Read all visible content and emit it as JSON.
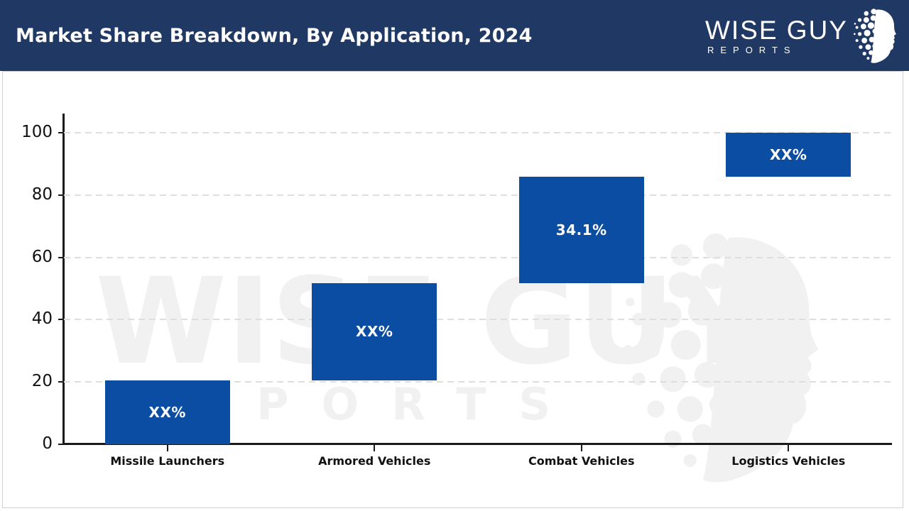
{
  "header": {
    "title": "Market Share Breakdown, By Application, 2024",
    "logo": {
      "wordmark": "WISE GUY",
      "subtitle": "REPORTS"
    }
  },
  "watermark": {
    "line1": "WISE GUY",
    "line2": "REPORTS"
  },
  "colors": {
    "header_bg": "#1F3864",
    "bar": "#0B4DA2",
    "watermark": "#F1F1F1",
    "grid": "#DEDEDE",
    "axis": "#1A1A1A"
  },
  "chart_data": {
    "type": "bar",
    "variant": "waterfall",
    "title": "Market Share Breakdown, By Application, 2024",
    "xlabel": "",
    "ylabel": "",
    "categories": [
      "Missile Launchers",
      "Armored Vehicles",
      "Combat Vehicles",
      "Logistics Vehicles"
    ],
    "segments": [
      {
        "category": "Missile Launchers",
        "start": 0,
        "end": 20.5,
        "value_label": "XX%"
      },
      {
        "category": "Armored Vehicles",
        "start": 20.5,
        "end": 51.8,
        "value_label": "XX%"
      },
      {
        "category": "Combat Vehicles",
        "start": 51.8,
        "end": 85.9,
        "value_label": "34.1%",
        "value": 34.1
      },
      {
        "category": "Logistics Vehicles",
        "start": 85.9,
        "end": 100,
        "value_label": "XX%"
      }
    ],
    "yticks": [
      0,
      20,
      40,
      60,
      80,
      100
    ],
    "ylim": [
      0,
      106
    ],
    "grid": "horizontal-dashed",
    "legend": null,
    "bar_label_color": "#FFFFFF"
  }
}
